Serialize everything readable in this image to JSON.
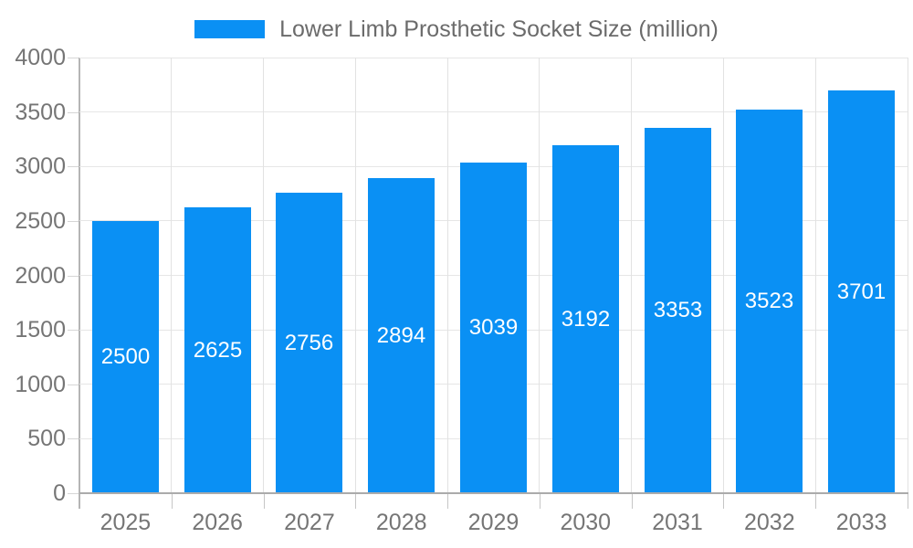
{
  "legend": {
    "label": "Lower Limb Prosthetic Socket Size (million)"
  },
  "chart_data": {
    "type": "bar",
    "title": "Lower Limb Prosthetic Socket Size (million)",
    "categories": [
      "2025",
      "2026",
      "2027",
      "2028",
      "2029",
      "2030",
      "2031",
      "2032",
      "2033"
    ],
    "values": [
      2500,
      2625,
      2756,
      2894,
      3039,
      3192,
      3353,
      3523,
      3701
    ],
    "series_name": "Lower Limb Prosthetic Socket Size (million)",
    "xlabel": "",
    "ylabel": "",
    "ylim": [
      0,
      4000
    ],
    "yticks": [
      0,
      500,
      1000,
      1500,
      2000,
      2500,
      3000,
      3500,
      4000
    ],
    "grid": true,
    "legend_position": "top",
    "bar_color": "#0a90f4",
    "value_label_color": "#ffffff",
    "axis_text_color": "#757575",
    "gridline_color": "#e6e6e6"
  }
}
